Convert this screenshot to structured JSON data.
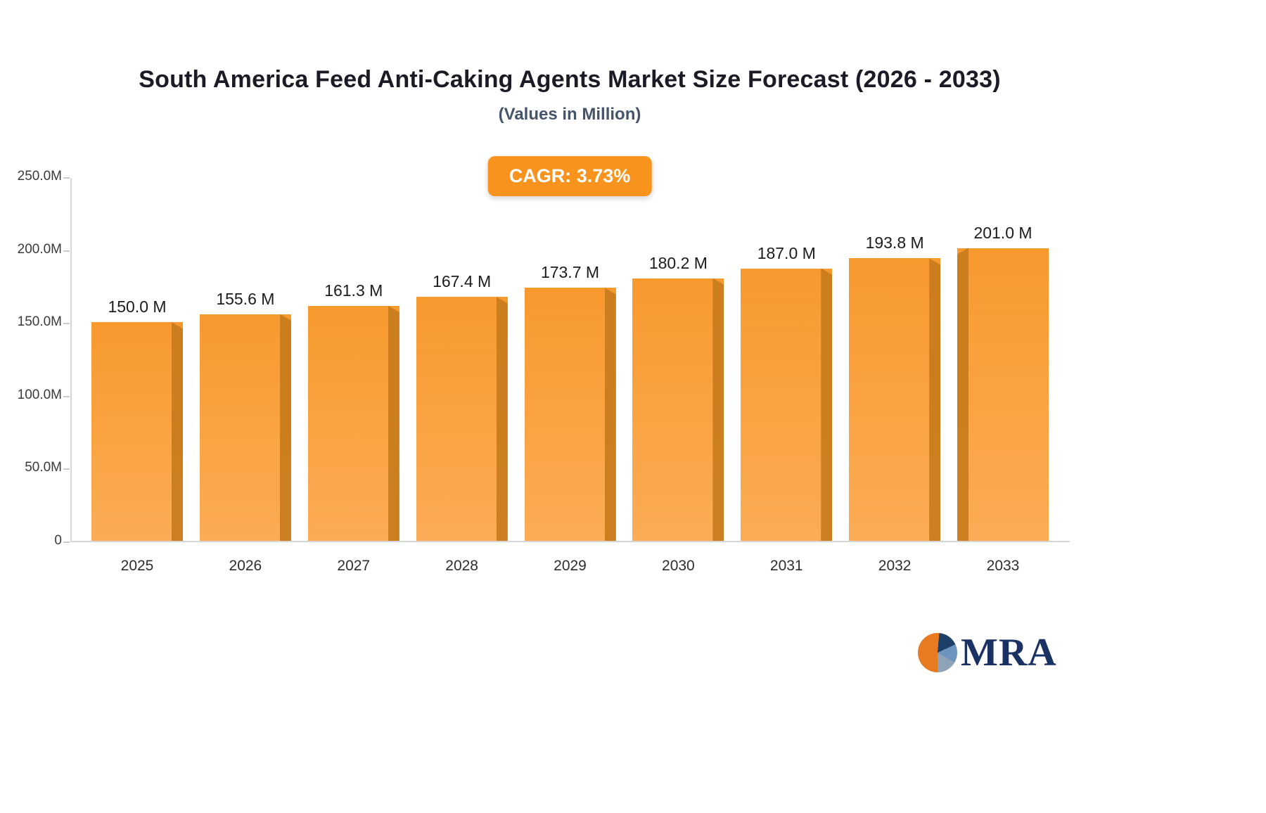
{
  "chart_data": {
    "type": "bar",
    "title": "South America Feed Anti-Caking Agents Market Size Forecast (2026 - 2033)",
    "subtitle": "(Values in Million)",
    "cagr_badge": "CAGR: 3.73%",
    "categories": [
      "2025",
      "2026",
      "2027",
      "2028",
      "2029",
      "2030",
      "2031",
      "2032",
      "2033"
    ],
    "values": [
      150.0,
      155.6,
      161.3,
      167.4,
      173.7,
      180.2,
      187.0,
      193.8,
      201.0
    ],
    "value_labels": [
      "150.0 M",
      "155.6 M",
      "161.3 M",
      "167.4 M",
      "173.7 M",
      "180.2 M",
      "187.0 M",
      "193.8 M",
      "201.0 M"
    ],
    "xlabel": "",
    "ylabel": "",
    "ylim": [
      0,
      250
    ],
    "y_ticks": [
      {
        "value": 250,
        "label": "250.0M"
      },
      {
        "value": 200,
        "label": "200.0M"
      },
      {
        "value": 150,
        "label": "150.0M"
      },
      {
        "value": 100,
        "label": "100.0M"
      },
      {
        "value": 50,
        "label": "50.0M"
      },
      {
        "value": 0,
        "label": "0"
      }
    ],
    "grid": false,
    "legend": "none"
  },
  "colors": {
    "accent_orange": "#F8941E",
    "bar_top": "#F8992E",
    "bar_bottom": "#FBAC55",
    "bar_side": "#C97C1E",
    "logo_navy": "#1A3263"
  },
  "logo": {
    "text": "MRA",
    "icon": "pie-circle-icon"
  }
}
